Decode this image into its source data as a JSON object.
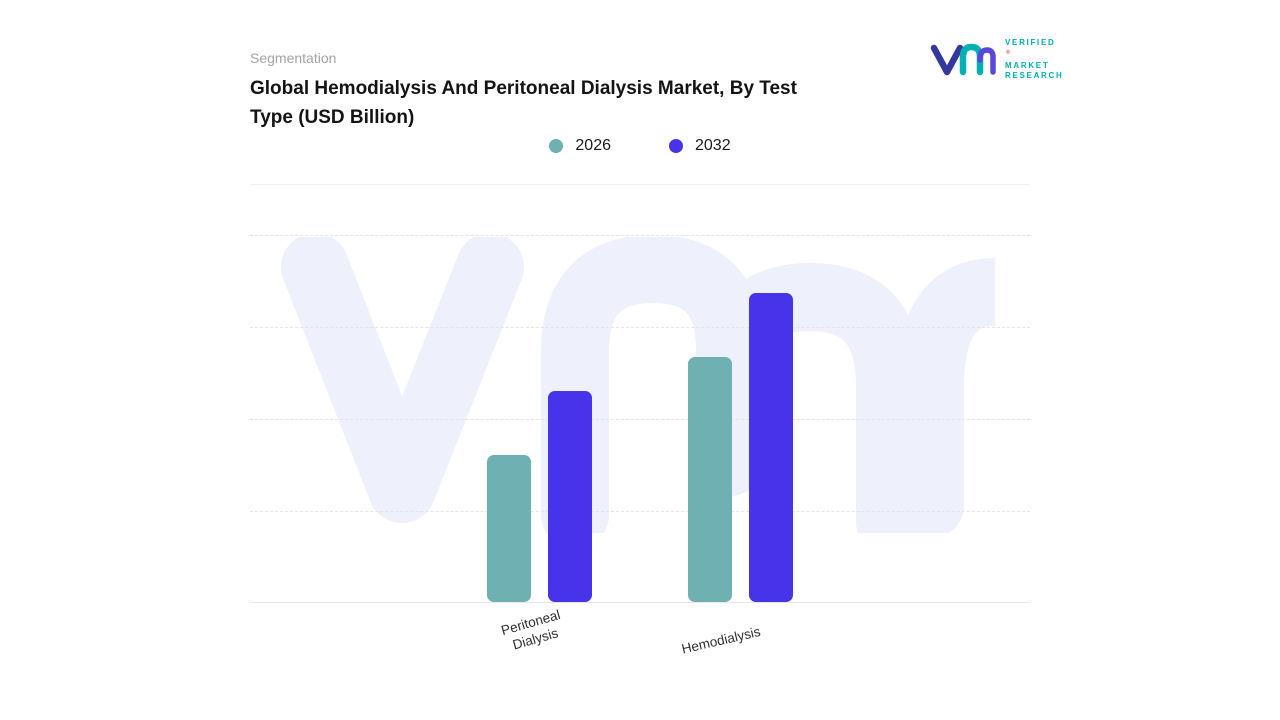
{
  "branding": {
    "logo_lines": [
      "VERIFIED",
      "MARKET",
      "RESEARCH"
    ],
    "registered_mark": "®",
    "teal": "#00b0b0",
    "navy": "#35389b"
  },
  "header": {
    "eyebrow": "Segmentation",
    "title_line1": "Global Hemodialysis And Peritoneal Dialysis Market, By Test",
    "title_line2": "Type (USD Billion)"
  },
  "legend": {
    "items": [
      {
        "label": "2026",
        "color": "#6fb0b2"
      },
      {
        "label": "2032",
        "color": "#4733ea"
      }
    ]
  },
  "chart_data": {
    "type": "bar",
    "title": "Global Hemodialysis And Peritoneal Dialysis Market, By Test Type (USD Billion)",
    "categories": [
      "Peritoneal Dialysis",
      "Hemodialysis"
    ],
    "series": [
      {
        "name": "2026",
        "color": "#6fb0b2",
        "values": [
          48,
          80
        ]
      },
      {
        "name": "2032",
        "color": "#4733ea",
        "values": [
          69,
          101
        ]
      }
    ],
    "xlabel": "",
    "ylabel": "",
    "ylim": [
      0,
      120
    ],
    "value_axis_labels_visible": false,
    "grid": "horizontal-dashed",
    "legend_position": "top",
    "watermark_color": "#eef0fb"
  }
}
